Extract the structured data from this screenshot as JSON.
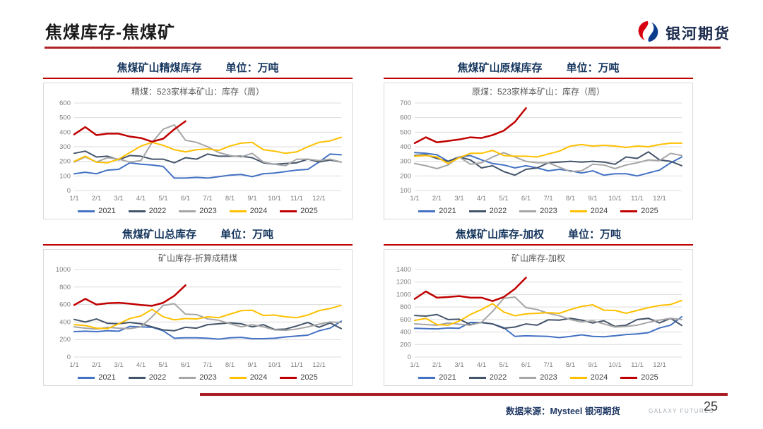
{
  "page": {
    "title": "焦煤库存-焦煤矿",
    "logo_text": "银河期货",
    "footer_source": "数据来源：Mysteel 银河期货",
    "footer_brand": "GALAXY FUTURES",
    "page_number": "25"
  },
  "colors": {
    "accent_red": "#C00000",
    "header_navy": "#17375E",
    "grid_gray": "#DCDCDC"
  },
  "chart_data": [
    {
      "type": "line",
      "panel_title": "焦煤矿山精煤库存",
      "unit_label": "单位：万吨",
      "inner_title": "精煤：523家样本矿山：库存（周）",
      "ylim": [
        0,
        600
      ],
      "ytick_step": 100,
      "x_tick_labels": [
        "1/1",
        "2/1",
        "3/1",
        "4/1",
        "5/1",
        "6/1",
        "7/1",
        "8/1",
        "9/1",
        "10/1",
        "11/1",
        "12/1"
      ],
      "sampling": "semimonthly",
      "legend_position": "bottom",
      "series": [
        {
          "name": "2021",
          "color": "#4472C4",
          "values": [
            115,
            125,
            115,
            140,
            145,
            190,
            180,
            175,
            165,
            85,
            85,
            90,
            85,
            95,
            105,
            110,
            95,
            115,
            120,
            130,
            140,
            145,
            195,
            250,
            245
          ]
        },
        {
          "name": "2022",
          "color": "#44546A",
          "values": [
            255,
            270,
            230,
            235,
            210,
            240,
            235,
            215,
            215,
            190,
            225,
            215,
            250,
            235,
            235,
            235,
            225,
            190,
            180,
            185,
            190,
            215,
            195,
            210,
            195
          ]
        },
        {
          "name": "2023",
          "color": "#A6A6A6",
          "values": [
            195,
            230,
            195,
            225,
            215,
            195,
            205,
            330,
            420,
            450,
            345,
            330,
            300,
            260,
            240,
            230,
            255,
            195,
            180,
            170,
            215,
            215,
            205,
            215,
            195
          ]
        },
        {
          "name": "2024",
          "color": "#FFC000",
          "values": [
            200,
            235,
            195,
            190,
            215,
            260,
            305,
            330,
            310,
            280,
            265,
            280,
            285,
            275,
            305,
            325,
            330,
            280,
            270,
            255,
            265,
            300,
            330,
            340,
            365
          ]
        },
        {
          "name": "2025",
          "color": "#C00000",
          "values": [
            385,
            435,
            380,
            390,
            390,
            370,
            360,
            335,
            355,
            420,
            475
          ]
        }
      ]
    },
    {
      "type": "line",
      "panel_title": "焦煤矿山原煤库存",
      "unit_label": "单位：万吨",
      "inner_title": "原煤：523家样本矿山：库存（周）",
      "ylim": [
        100,
        700
      ],
      "ytick_step": 100,
      "x_tick_labels": [
        "1/1",
        "2/1",
        "3/1",
        "4/1",
        "5/1",
        "6/1",
        "7/1",
        "8/1",
        "9/1",
        "10/1",
        "11/1",
        "12/1"
      ],
      "sampling": "semimonthly",
      "legend_position": "bottom",
      "series": [
        {
          "name": "2021",
          "color": "#4472C4",
          "values": [
            360,
            355,
            345,
            300,
            330,
            340,
            310,
            285,
            275,
            255,
            270,
            255,
            235,
            245,
            235,
            220,
            235,
            205,
            215,
            215,
            200,
            220,
            240,
            290,
            330
          ]
        },
        {
          "name": "2022",
          "color": "#44546A",
          "values": [
            340,
            345,
            320,
            300,
            330,
            310,
            255,
            270,
            230,
            205,
            245,
            255,
            290,
            295,
            300,
            295,
            300,
            295,
            280,
            330,
            320,
            365,
            310,
            300,
            270
          ]
        },
        {
          "name": "2023",
          "color": "#A6A6A6",
          "values": [
            285,
            270,
            250,
            275,
            330,
            280,
            290,
            330,
            360,
            330,
            300,
            290,
            290,
            260,
            230,
            235,
            280,
            275,
            250,
            275,
            290,
            310,
            305,
            355,
            340
          ]
        },
        {
          "name": "2024",
          "color": "#FFC000",
          "values": [
            335,
            340,
            330,
            285,
            325,
            355,
            355,
            375,
            340,
            335,
            335,
            330,
            350,
            370,
            405,
            415,
            405,
            410,
            405,
            395,
            405,
            400,
            415,
            425,
            425
          ]
        },
        {
          "name": "2025",
          "color": "#C00000",
          "values": [
            425,
            465,
            430,
            440,
            450,
            465,
            460,
            480,
            510,
            570,
            665
          ]
        }
      ]
    },
    {
      "type": "line",
      "panel_title": "焦煤矿山总库存",
      "unit_label": "单位：万吨",
      "inner_title": "矿山库存-折算成精煤",
      "ylim": [
        0,
        1000
      ],
      "ytick_step": 200,
      "x_tick_labels": [
        "1/1",
        "2/1",
        "3/1",
        "4/1",
        "5/1",
        "6/1",
        "7/1",
        "8/1",
        "9/1",
        "10/1",
        "11/1",
        "12/1"
      ],
      "sampling": "semimonthly",
      "legend_position": "bottom",
      "series": [
        {
          "name": "2021",
          "color": "#4472C4",
          "values": [
            290,
            295,
            290,
            300,
            295,
            350,
            345,
            340,
            300,
            215,
            220,
            220,
            215,
            205,
            220,
            225,
            210,
            210,
            215,
            230,
            240,
            250,
            300,
            330,
            410
          ]
        },
        {
          "name": "2022",
          "color": "#44546A",
          "values": [
            430,
            400,
            435,
            385,
            380,
            395,
            380,
            345,
            310,
            300,
            340,
            330,
            370,
            380,
            390,
            380,
            345,
            370,
            315,
            320,
            355,
            395,
            340,
            390,
            325
          ]
        },
        {
          "name": "2023",
          "color": "#A6A6A6",
          "values": [
            345,
            330,
            320,
            340,
            330,
            325,
            345,
            460,
            590,
            610,
            490,
            485,
            435,
            420,
            380,
            345,
            370,
            345,
            310,
            305,
            320,
            345,
            375,
            400,
            395
          ]
        },
        {
          "name": "2024",
          "color": "#FFC000",
          "values": [
            370,
            360,
            330,
            325,
            380,
            440,
            470,
            545,
            460,
            425,
            440,
            435,
            460,
            450,
            490,
            530,
            535,
            475,
            480,
            460,
            450,
            480,
            530,
            555,
            590
          ]
        },
        {
          "name": "2025",
          "color": "#C00000",
          "values": [
            595,
            665,
            600,
            615,
            620,
            610,
            595,
            585,
            620,
            700,
            820
          ]
        }
      ]
    },
    {
      "type": "line",
      "panel_title": "焦煤矿山库存-加权",
      "unit_label": "单位：万吨",
      "inner_title": "矿山库存-加权",
      "ylim": [
        0,
        1400
      ],
      "ytick_step": 200,
      "x_tick_labels": [
        "1/1",
        "2/1",
        "3/1",
        "4/1",
        "5/1",
        "6/1",
        "7/1",
        "8/1",
        "9/1",
        "10/1",
        "11/1",
        "12/1"
      ],
      "sampling": "semimonthly",
      "legend_position": "bottom",
      "series": [
        {
          "name": "2021",
          "color": "#4472C4",
          "values": [
            460,
            455,
            450,
            465,
            460,
            555,
            550,
            530,
            470,
            330,
            340,
            335,
            330,
            310,
            330,
            355,
            330,
            325,
            340,
            360,
            370,
            390,
            465,
            510,
            645
          ]
        },
        {
          "name": "2022",
          "color": "#44546A",
          "values": [
            665,
            655,
            680,
            600,
            605,
            520,
            555,
            530,
            460,
            480,
            530,
            510,
            595,
            590,
            620,
            590,
            545,
            580,
            490,
            510,
            600,
            620,
            545,
            620,
            505
          ]
        },
        {
          "name": "2023",
          "color": "#A6A6A6",
          "values": [
            530,
            520,
            510,
            545,
            525,
            510,
            555,
            730,
            940,
            960,
            790,
            760,
            700,
            660,
            600,
            560,
            580,
            530,
            480,
            490,
            510,
            555,
            590,
            620,
            600
          ]
        },
        {
          "name": "2024",
          "color": "#FFC000",
          "values": [
            585,
            620,
            520,
            510,
            575,
            680,
            760,
            855,
            720,
            660,
            690,
            700,
            710,
            700,
            760,
            810,
            835,
            750,
            745,
            700,
            745,
            790,
            825,
            840,
            905
          ]
        },
        {
          "name": "2025",
          "color": "#C00000",
          "values": [
            930,
            1050,
            950,
            960,
            975,
            950,
            950,
            895,
            960,
            1090,
            1270
          ]
        }
      ]
    }
  ]
}
